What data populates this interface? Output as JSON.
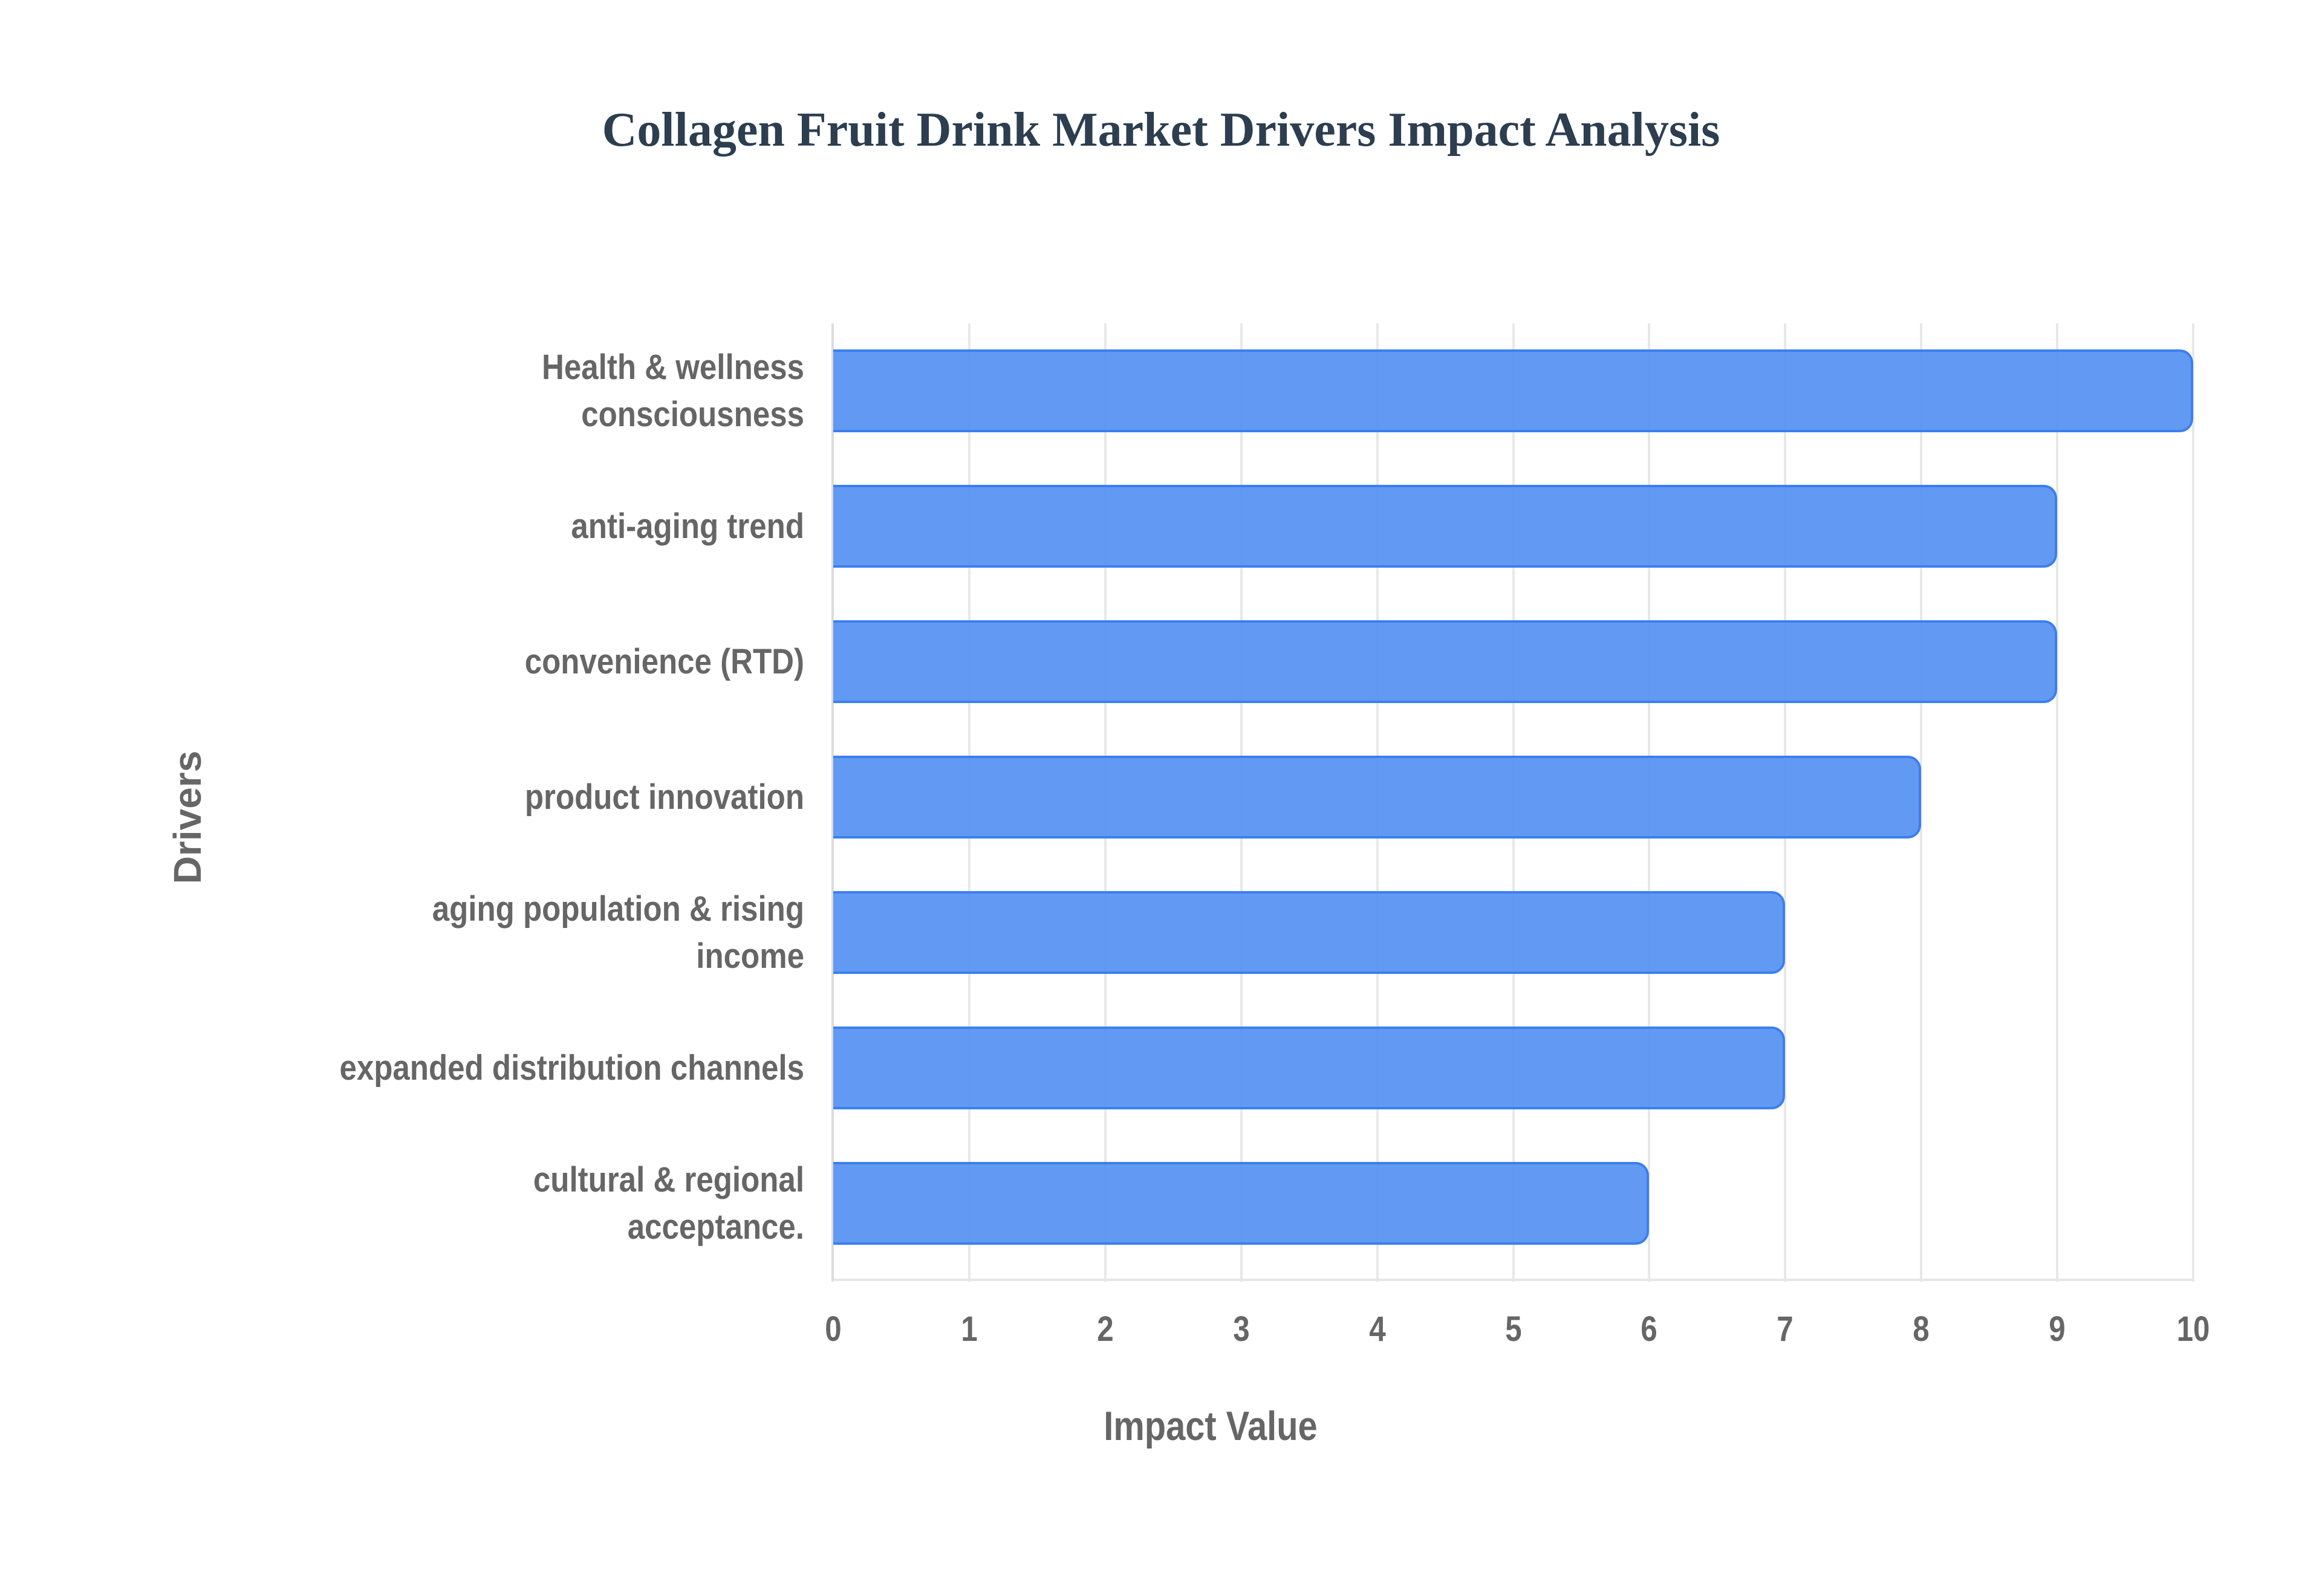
{
  "chart_data": {
    "type": "bar",
    "orientation": "horizontal",
    "title": "Collagen Fruit Drink Market Drivers Impact Analysis",
    "xlabel": "Impact Value",
    "ylabel": "Drivers",
    "categories": [
      "Health & wellness consciousness",
      "anti-aging trend",
      "convenience (RTD)",
      "product innovation",
      "aging population & rising income",
      "expanded distribution channels",
      "cultural & regional acceptance."
    ],
    "category_lines": [
      [
        "Health & wellness",
        "consciousness"
      ],
      [
        "anti-aging trend"
      ],
      [
        "convenience (RTD)"
      ],
      [
        "product innovation"
      ],
      [
        "aging population & rising",
        "income"
      ],
      [
        "expanded distribution channels"
      ],
      [
        "cultural & regional",
        "acceptance."
      ]
    ],
    "values": [
      10,
      9,
      9,
      8,
      7,
      7,
      6
    ],
    "xlim": [
      0,
      10
    ],
    "xticks": [
      "0",
      "1",
      "2",
      "3",
      "4",
      "5",
      "6",
      "7",
      "8",
      "9",
      "10"
    ],
    "grid": true,
    "legend": "none",
    "colors": {
      "bar_fill": "#5b95f5",
      "bar_border": "#3b7ff0",
      "title": "#2c3e50",
      "axis_text": "#666666",
      "grid": "#e8e8e8"
    }
  }
}
